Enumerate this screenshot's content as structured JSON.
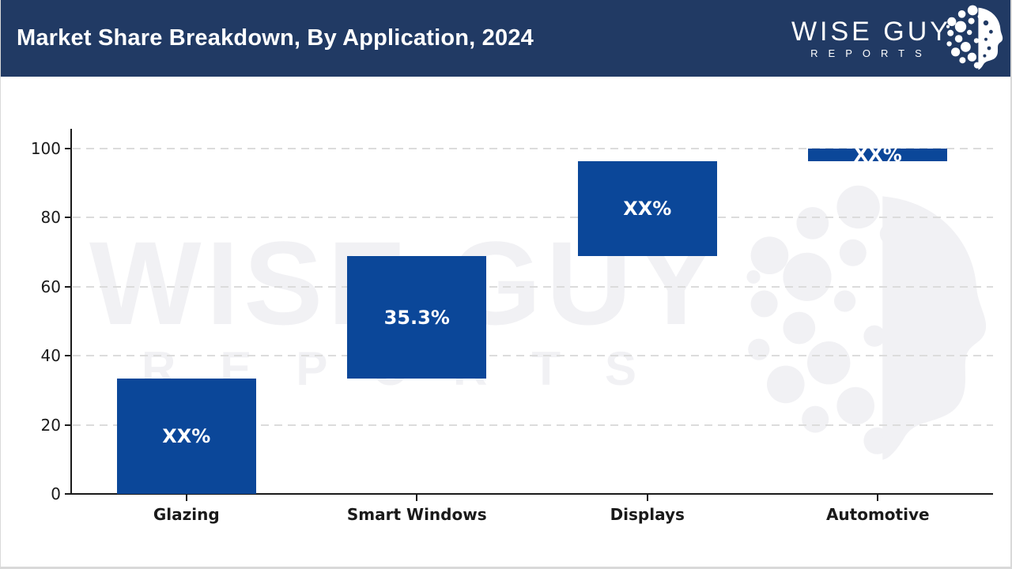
{
  "header": {
    "title": "Market Share Breakdown, By Application, 2024"
  },
  "logo": {
    "line1": "WISE GUY",
    "line2": "REPORTS"
  },
  "watermark": {
    "line1": "WISE GUY",
    "line2": "REPORTS"
  },
  "colors": {
    "header_navy": "#213a64",
    "bar_blue": "#0b4799",
    "gridline_gray": "#dcdcdc",
    "axis_black": "#1a1a1a",
    "watermark_gray": "#f1f1f4",
    "bar_label_white": "#ffffff"
  },
  "chart_data": {
    "type": "bar",
    "subtype": "floating-waterfall",
    "title": "Market Share Breakdown, By Application, 2024",
    "xlabel": "",
    "ylabel": "",
    "categories": [
      "Glazing",
      "Smart Windows",
      "Displays",
      "Automotive"
    ],
    "segments": [
      {
        "category": "Glazing",
        "start": 0,
        "end": 33.4,
        "label": "XX%"
      },
      {
        "category": "Smart Windows",
        "start": 33.4,
        "end": 68.7,
        "label": "35.3%"
      },
      {
        "category": "Displays",
        "start": 68.7,
        "end": 96.3,
        "label": "XX%"
      },
      {
        "category": "Automotive",
        "start": 96.3,
        "end": 100,
        "label": "XX%"
      }
    ],
    "yticks": [
      0,
      20,
      40,
      60,
      80,
      100
    ],
    "ylim": [
      0,
      105.7
    ],
    "grid": true,
    "grid_style": "dashed",
    "legend": false,
    "bar_color": "#0b4799",
    "label_color": "#ffffff"
  }
}
